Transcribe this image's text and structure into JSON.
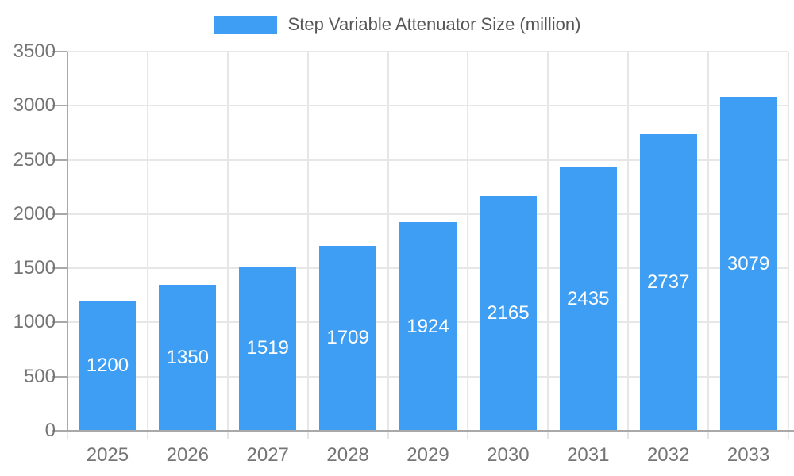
{
  "chart_data": {
    "type": "bar",
    "title": "Step Variable Attenuator Size (million)",
    "legend_position": "top",
    "categories": [
      "2025",
      "2026",
      "2027",
      "2028",
      "2029",
      "2030",
      "2031",
      "2032",
      "2033"
    ],
    "values": [
      1200,
      1350,
      1519,
      1709,
      1924,
      2165,
      2435,
      2737,
      3079
    ],
    "value_labels_shown": true,
    "xlabel": "",
    "ylabel": "",
    "ylim": [
      0,
      3500
    ],
    "yticks": [
      0,
      500,
      1000,
      1500,
      2000,
      2500,
      3000,
      3500
    ],
    "grid": true,
    "colors": {
      "bar": "#3D9EF3",
      "value_label": "#FFFFFF",
      "axis_label": "#757575",
      "legend_text": "#565656",
      "gridline": "#E7E7E7",
      "axis_line": "#A9A9A9"
    }
  }
}
